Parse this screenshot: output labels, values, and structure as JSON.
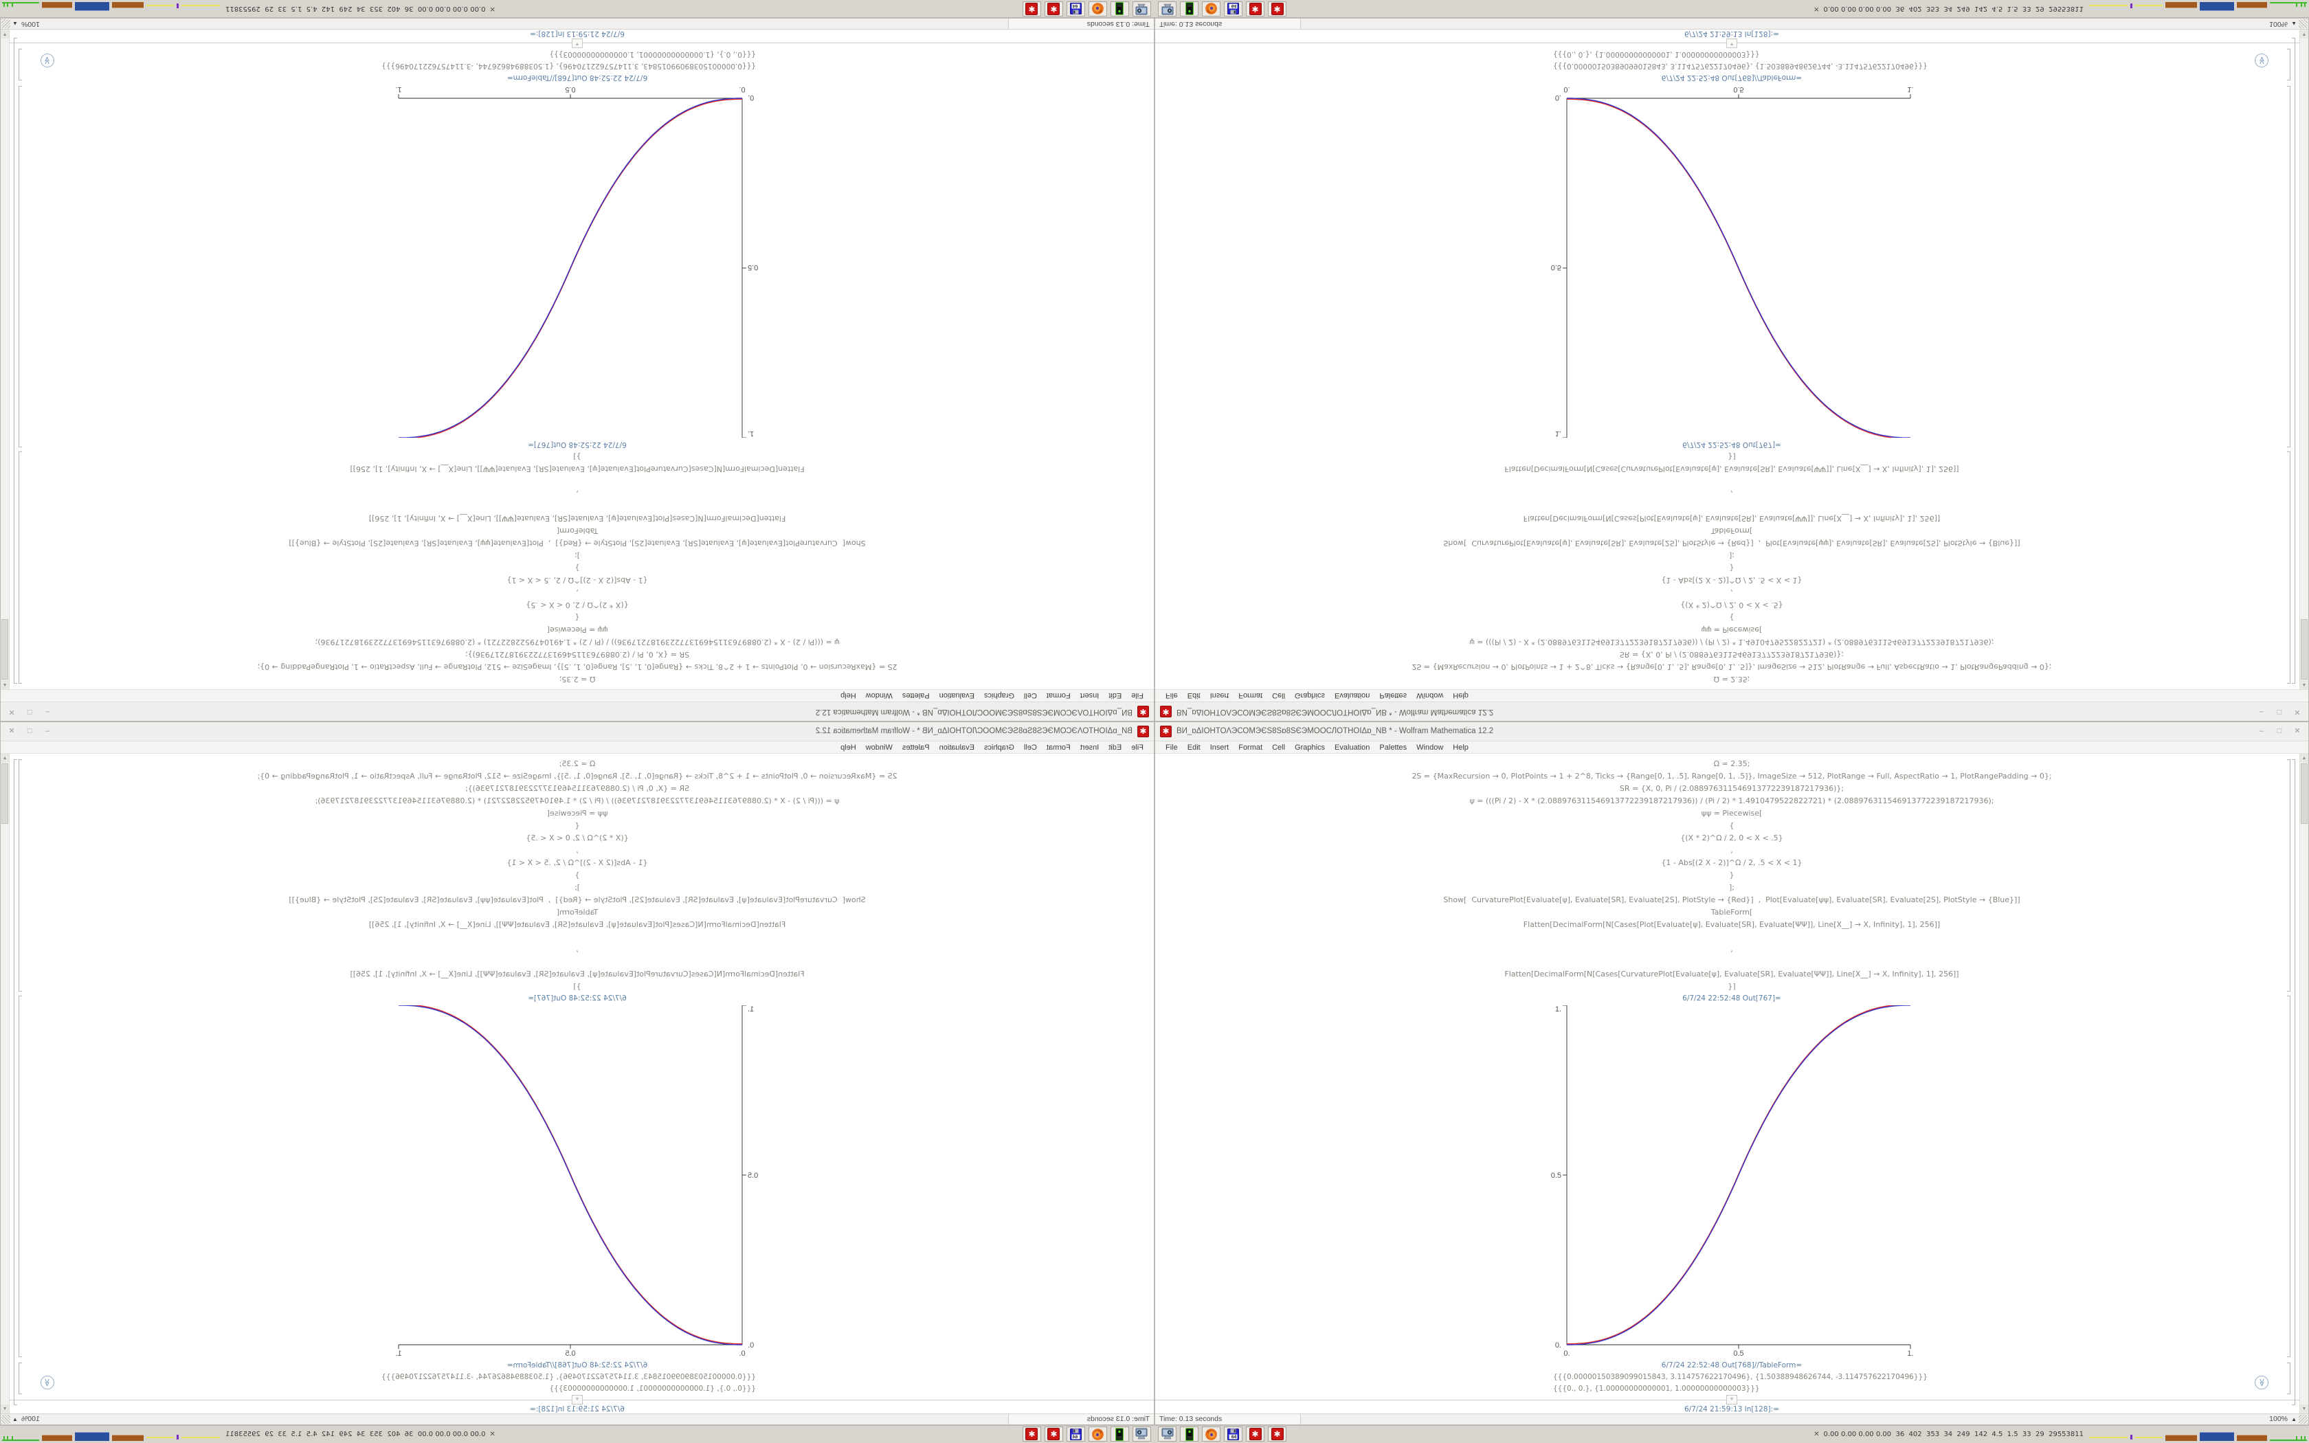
{
  "window": {
    "title": "ВИ_ɒΔΙΟΗΤΟΛЭСОМЭЄЅ8Ѕɒ8ЅЄЭМООСЛОТНОΙΔɒ_NB * - Wolfram Mathematica 12.2",
    "icon_glyph": "✱",
    "controls": {
      "minimize": "‒",
      "maximize": "□",
      "close": "✕"
    }
  },
  "menu": {
    "items": [
      "File",
      "Edit",
      "Insert",
      "Format",
      "Cell",
      "Graphics",
      "Evaluation",
      "Palettes",
      "Window",
      "Help"
    ]
  },
  "notebook": {
    "code_lines": [
      "Ω = 2.35;",
      "2S = {MaxRecursion → 0, PlotPoints → 1 + 2^8, Ticks → {Range[0, 1, .5], Range[0, 1, .5]}, ImageSize → 512, PlotRange → Full, AspectRatio → 1, PlotRangePadding → 0};",
      "SR = {X, 0, Pi / (2.088976311546913772239187217936)};",
      "ψ = (((Pi / 2) - X * (2.088976311546913772239187217936)) / (Pi / 2) * 1.4910479522822721) * (2.088976311546913772239187217936);",
      "ψψ = Piecewise[",
      "{",
      "{(X * 2)^Ω / 2, 0 < X < .5}",
      ",",
      "{1 - Abs[(2 X - 2)]^Ω / 2, .5 < X < 1}",
      "}",
      "];",
      "Show[  CurvaturePlot[Evaluate[ψ], Evaluate[SR], Evaluate[2S], PlotStyle → {Red}]  ,  Plot[Evaluate[ψψ], Evaluate[SR], Evaluate[2S], PlotStyle → {Blue}]]",
      "TableForm[",
      "Flatten[DecimalForm[N[Cases[Plot[Evaluate[ψ], Evaluate[SR], Evaluate[ΨΨ]], Line[X__] → X, Infinity], 1], 256]]",
      "",
      ",",
      "",
      "Flatten[DecimalForm[N[Cases[CurvaturePlot[Evaluate[ψ], Evaluate[SR], Evaluate[ΨΨ]], Line[X__] → X, Infinity], 1], 256]]",
      "}]"
    ],
    "out_plot_label": "6/7/24 22:52:48 Out[767]=",
    "out_table_label": "6/7/24 22:52:48 Out[768]//TableForm=",
    "table_rows": [
      "{{{0.00000150389099015843, 3.114757622170496}, {1.50388948626744, -3.114757622170496}}}",
      "{{{0., 0.}, {1.00000000000001, 1.00000000000003}}}"
    ],
    "insert_plus": "+",
    "next_input_label": "6/7/24 21:59:13 In[128]:="
  },
  "status": {
    "time": "Time: 0.13 seconds",
    "zoom": "100%"
  },
  "ui": {
    "arrow_up": "▲",
    "arrow_down": "▼",
    "popup_arrow": "▲",
    "chevron_double": "≫"
  },
  "panel": {
    "launchers": [
      "display-capture",
      "removable-drive",
      "firefox",
      "floppy-64",
      "system-settings",
      "system-settings"
    ],
    "floppy_label": "64",
    "gear_glyph": "✱",
    "tray_x": "✕",
    "tray_text": "0.00 0.00 0.00 0.00  36  402  353  34  249  142  4.5  1.5  33  29  29553811",
    "tray_graphs": [
      {
        "kind": "line",
        "color": "#eae75c",
        "w": 56,
        "h": 2
      },
      {
        "kind": "tick",
        "color": "#7b2fbe",
        "w": 3,
        "h": 7
      },
      {
        "kind": "line",
        "color": "#eae75c",
        "w": 40,
        "h": 2
      },
      {
        "kind": "bar",
        "color": "#a3591d",
        "w": 46,
        "h": 9
      },
      {
        "kind": "bar",
        "color": "#2a4f9e",
        "w": 50,
        "h": 13
      },
      {
        "kind": "bar",
        "color": "#a3591d",
        "w": 44,
        "h": 9
      },
      {
        "kind": "spikes",
        "color": "#3fba2a",
        "w": 54,
        "h": 8
      }
    ]
  },
  "chart_data": {
    "type": "line",
    "title": "",
    "xlabel": "",
    "ylabel": "",
    "xlim": [
      0,
      1
    ],
    "ylim": [
      0,
      1
    ],
    "xticks": [
      "0.",
      "0.5",
      "1."
    ],
    "yticks": [
      "0.",
      "0.5",
      "1."
    ],
    "grid": false,
    "legend": "none",
    "omega": 2.35,
    "piecewise": "y = (2x)^Ω/2 for 0<x<.5 ; y = 1-(2-2x)^Ω/2 for .5<x<1",
    "axis_color": "#2a2a2a",
    "series": [
      {
        "name": "CurvaturePlot ψ (Red)",
        "color": "#e02a2a",
        "x": [
          0,
          0.1,
          0.2,
          0.3,
          0.4,
          0.5,
          0.6,
          0.7,
          0.8,
          0.9,
          1
        ],
        "y": [
          0,
          0.0114,
          0.058,
          0.1506,
          0.296,
          0.5,
          0.704,
          0.8494,
          0.942,
          0.9886,
          1
        ]
      },
      {
        "name": "Plot ψψ (Blue)",
        "color": "#3030c8",
        "x": [
          0,
          0.1,
          0.2,
          0.3,
          0.4,
          0.5,
          0.6,
          0.7,
          0.8,
          0.9,
          1
        ],
        "y": [
          0,
          0.0114,
          0.058,
          0.1506,
          0.296,
          0.5,
          0.704,
          0.8494,
          0.942,
          0.9886,
          1
        ]
      }
    ]
  },
  "layout_note": "Single 1680x1050 screenshot tiled 2x2: bottom-right original, bottom-left mirrored horizontally, top-right mirrored vertically, top-left rotated 180deg"
}
